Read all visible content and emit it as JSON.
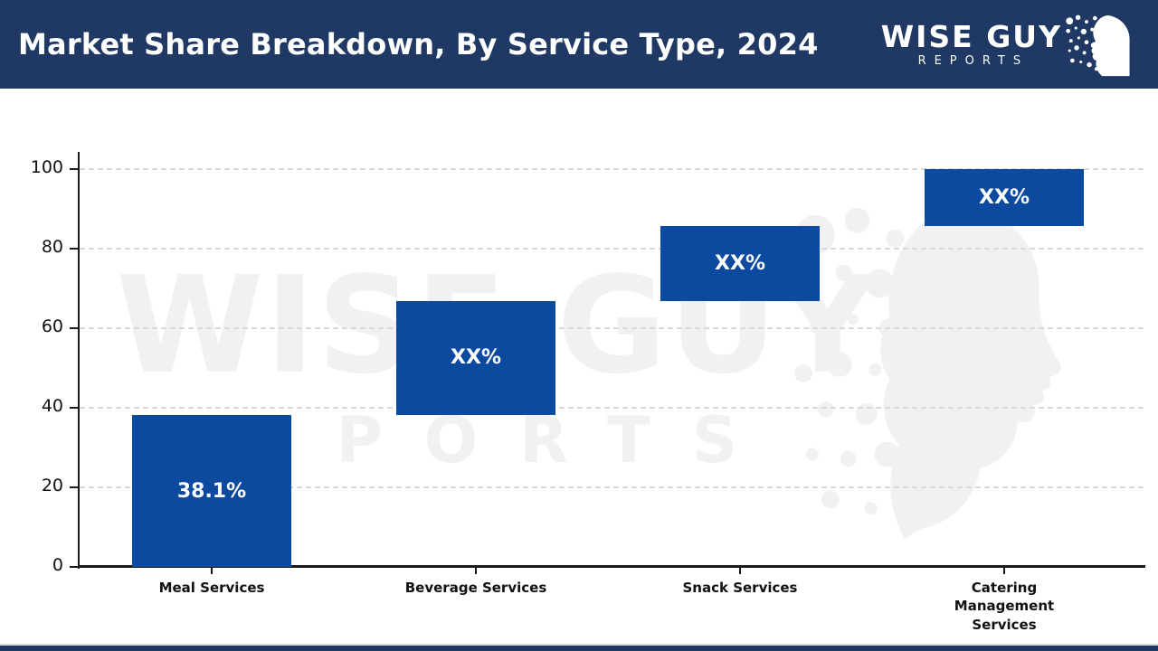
{
  "header": {
    "title": "Market Share Breakdown, By Service Type, 2024",
    "logo": {
      "line1": "WISE GUY",
      "line2": "REPORTS"
    }
  },
  "watermark": {
    "line1": "WISE GUY",
    "line2": "REPORTS"
  },
  "chart_data": {
    "type": "bar",
    "variant": "floating-waterfall",
    "title": "Market Share Breakdown, By Service Type, 2024",
    "categories": [
      "Meal Services",
      "Beverage Services",
      "Snack Services",
      "Catering\nManagement\nServices"
    ],
    "segments": [
      {
        "start": 0,
        "end": 38.1,
        "label": "38.1%"
      },
      {
        "start": 38.1,
        "end": 66.9,
        "label": "XX%"
      },
      {
        "start": 66.9,
        "end": 85.7,
        "label": "XX%"
      },
      {
        "start": 85.7,
        "end": 100,
        "label": "XX%"
      }
    ],
    "ylim": [
      0,
      100
    ],
    "yticks": [
      0,
      20,
      40,
      60,
      80,
      100
    ],
    "xlabel": "",
    "ylabel": "",
    "grid": "horizontal-dashed",
    "legend": "none"
  },
  "colors": {
    "header_bg": "#1f3864",
    "header_text": "#ffffff",
    "bar": "#0b4a9f",
    "bar_label": "#ffffff",
    "grid": "#d9d9d9",
    "axis": "#1a1a1a",
    "watermark": "#f1f1f4"
  }
}
